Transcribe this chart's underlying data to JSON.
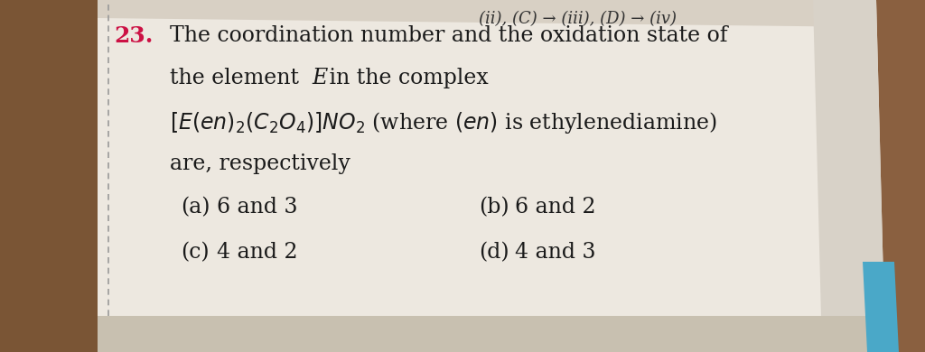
{
  "bg_left_color": "#b0785a",
  "bg_right_color": "#c8a882",
  "page_color": "#e8e2d8",
  "page_color_top": "#ddd8ce",
  "question_number": "23.",
  "question_number_color": "#cc1144",
  "top_text": "(ii), (C) → (iii), (D) → (iv)",
  "line1": "The coordination number and the oxidation state of",
  "opt_a_label": "(a)",
  "opt_a_text": "6 and 3",
  "opt_b_label": "(b)",
  "opt_b_text": "6 and 2",
  "opt_c_label": "(c)",
  "opt_c_text": "4 and 2",
  "opt_d_label": "(d)",
  "opt_d_text": "4 and 3",
  "font_size_main": 17,
  "font_size_q_num": 18,
  "font_size_top": 13,
  "font_size_options": 17,
  "blue_rect_color": "#4aa8c8"
}
